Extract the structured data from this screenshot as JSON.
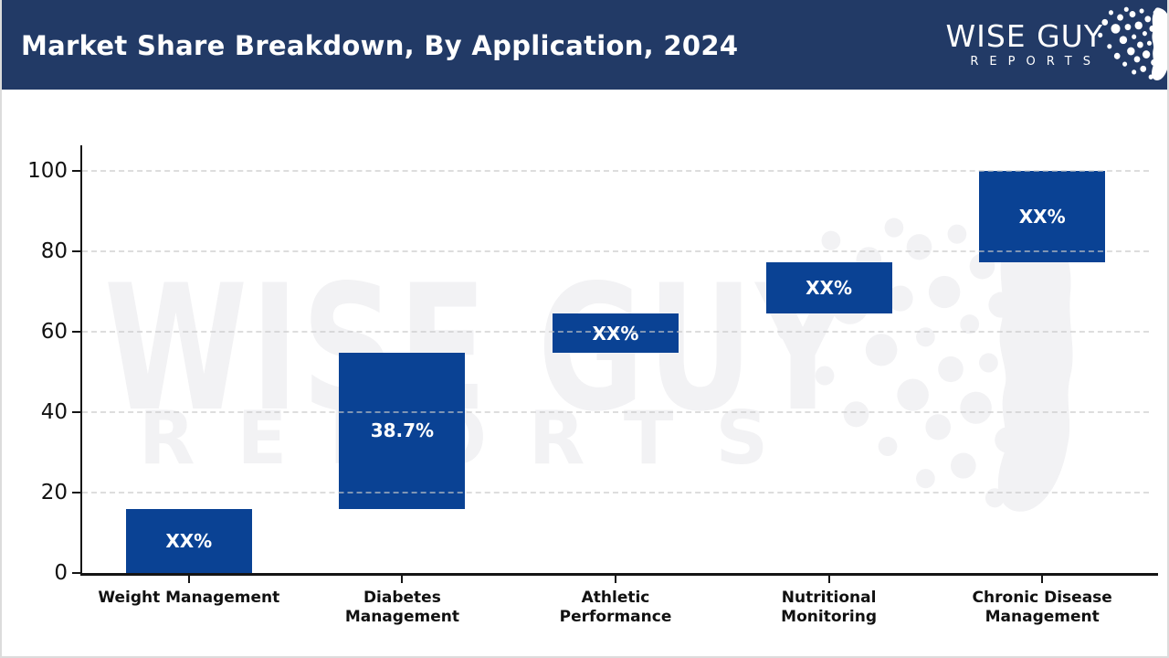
{
  "header": {
    "title": "Market Share Breakdown, By Application, 2024",
    "logo": {
      "line1": "WISE GUY",
      "line2": "REPORTS"
    }
  },
  "watermark": {
    "line1": "WISE GUY",
    "line2": "REPORTS"
  },
  "colors": {
    "header_bg": "#223A66",
    "bar": "#0A4294",
    "grid": "#E0E0E0",
    "axis": "#151515",
    "watermark": "#F2F2F4",
    "bar_label_text": "#FFFFFF",
    "page_border": "#DCDCDC"
  },
  "chart_data": {
    "type": "bar",
    "subtype": "waterfall",
    "title": "Market Share Breakdown, By Application, 2024",
    "categories": [
      "Weight Management",
      "Diabetes Management",
      "Athletic Performance",
      "Nutritional Monitoring",
      "Chronic Disease Management"
    ],
    "category_label_lines": [
      [
        "Weight Management"
      ],
      [
        "Diabetes",
        "Management"
      ],
      [
        "Athletic",
        "Performance"
      ],
      [
        "Nutritional",
        "Monitoring"
      ],
      [
        "Chronic Disease",
        "Management"
      ]
    ],
    "segments": [
      {
        "category": "Weight Management",
        "start": 0,
        "end": 16.0,
        "value": 16.0,
        "label": "XX%"
      },
      {
        "category": "Diabetes Management",
        "start": 16.0,
        "end": 54.7,
        "value": 38.7,
        "label": "38.7%"
      },
      {
        "category": "Athletic Performance",
        "start": 54.7,
        "end": 64.4,
        "value": 9.7,
        "label": "XX%"
      },
      {
        "category": "Nutritional Monitoring",
        "start": 64.4,
        "end": 77.1,
        "value": 12.7,
        "label": "XX%"
      },
      {
        "category": "Chronic Disease Management",
        "start": 77.1,
        "end": 100.0,
        "value": 22.9,
        "label": "XX%"
      }
    ],
    "yticks": [
      0,
      20,
      40,
      60,
      80,
      100
    ],
    "ylim": [
      0,
      106
    ],
    "xlabel": "",
    "ylabel": "",
    "grid": "horizontal-dashed",
    "legend": "none"
  }
}
